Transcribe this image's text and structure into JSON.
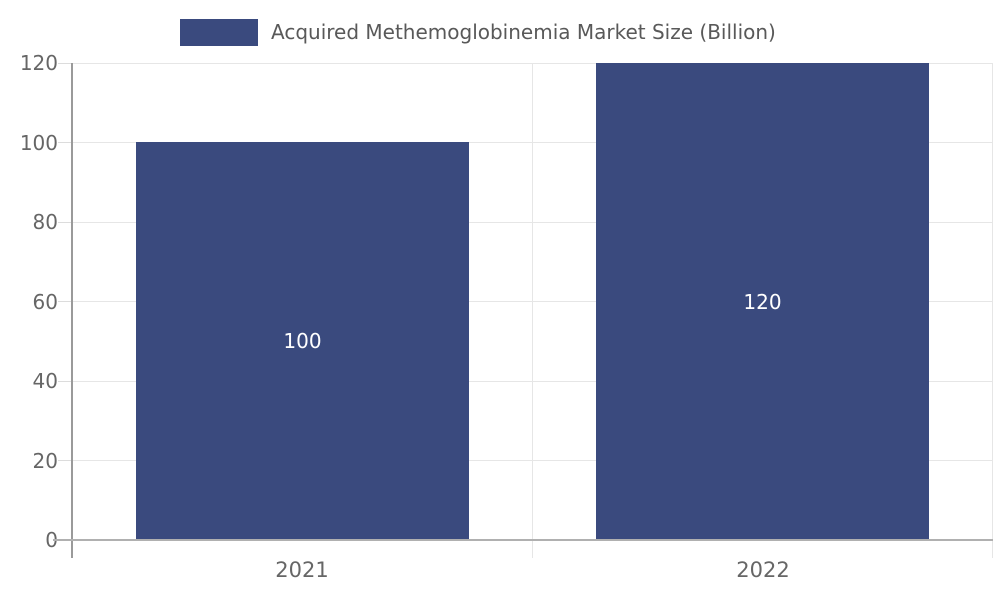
{
  "legend": {
    "label": "Acquired Methemoglobinemia Market Size (Billion)"
  },
  "chart_data": {
    "type": "bar",
    "title": "Acquired Methemoglobinemia Market Size (Billion)",
    "categories": [
      "2021",
      "2022"
    ],
    "values": [
      100,
      120
    ],
    "bar_labels": [
      "100",
      "120"
    ],
    "xlabel": "",
    "ylabel": "",
    "ylim": [
      0,
      120
    ],
    "yticks": [
      0,
      20,
      40,
      60,
      80,
      100,
      120
    ],
    "grid": "on",
    "legend_position": "top-center",
    "colors": {
      "bar": "#3A4A7E",
      "bar_label_text": "#FFFFFF",
      "gridline": "#E6E6E6",
      "boundary_tick": "#E6E6E6",
      "y_tickmark": "#DCDCDC",
      "axis_line": "#B0B0B0",
      "y_spine": "#9A9A9A",
      "tick_text": "#666666",
      "legend_text": "#595959"
    }
  }
}
